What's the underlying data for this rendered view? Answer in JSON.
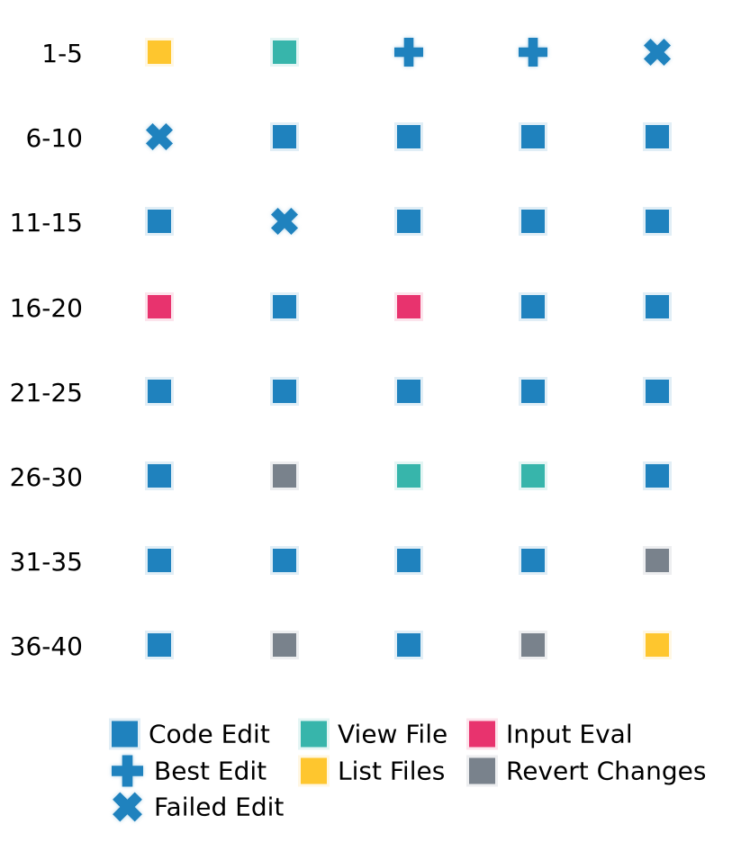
{
  "background_color": "#ffffff",
  "chart_data": {
    "type": "scatter",
    "title": "",
    "xlabel": "",
    "ylabel": "",
    "description": "Grid of action markers: 8 rows of turn ranges by 5 turns per row, each cell shows the action type taken on that turn",
    "row_labels": [
      "1-5",
      "6-10",
      "11-15",
      "16-20",
      "21-25",
      "26-30",
      "31-35",
      "36-40"
    ],
    "columns_per_row": 5,
    "grid": [
      [
        "list_files",
        "view_file",
        "best_edit",
        "best_edit",
        "failed_edit"
      ],
      [
        "failed_edit",
        "code_edit",
        "code_edit",
        "code_edit",
        "code_edit"
      ],
      [
        "code_edit",
        "failed_edit",
        "code_edit",
        "code_edit",
        "code_edit"
      ],
      [
        "input_eval",
        "code_edit",
        "input_eval",
        "code_edit",
        "code_edit"
      ],
      [
        "code_edit",
        "code_edit",
        "code_edit",
        "code_edit",
        "code_edit"
      ],
      [
        "code_edit",
        "revert_changes",
        "view_file",
        "view_file",
        "code_edit"
      ],
      [
        "code_edit",
        "code_edit",
        "code_edit",
        "code_edit",
        "revert_changes"
      ],
      [
        "code_edit",
        "revert_changes",
        "code_edit",
        "revert_changes",
        "list_files"
      ]
    ],
    "legend": [
      {
        "key": "code_edit",
        "label": "Code Edit",
        "marker": "square",
        "color": "#1f82be"
      },
      {
        "key": "view_file",
        "label": "View File",
        "marker": "square",
        "color": "#37b5ab"
      },
      {
        "key": "input_eval",
        "label": "Input Eval",
        "marker": "square",
        "color": "#e8336e"
      },
      {
        "key": "best_edit",
        "label": "Best Edit",
        "marker": "plus",
        "color": "#1f82be"
      },
      {
        "key": "list_files",
        "label": "List Files",
        "marker": "square",
        "color": "#fec62e"
      },
      {
        "key": "revert_changes",
        "label": "Revert Changes",
        "marker": "square",
        "color": "#79828c"
      },
      {
        "key": "failed_edit",
        "label": "Failed Edit",
        "marker": "x",
        "color": "#1f82be"
      }
    ],
    "legend_position": "bottom",
    "grid_lines": "off",
    "axes": "off"
  }
}
